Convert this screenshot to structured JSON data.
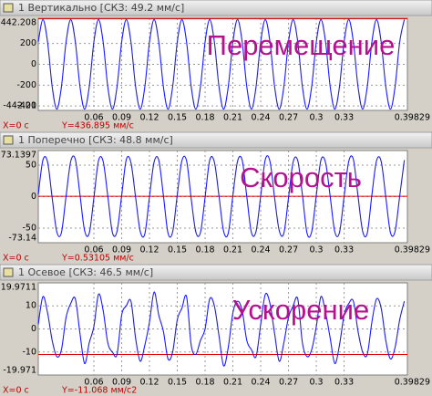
{
  "chart_data": [
    {
      "type": "line",
      "title": "1 Вертикально [СКЗ: 49.2 мм/с]",
      "annotation": "Перемещение",
      "xlim": [
        0,
        0.39829
      ],
      "ylim": [
        -442.21,
        442.208
      ],
      "xticks": [
        0.06,
        0.09,
        0.12,
        0.15,
        0.18,
        0.21,
        0.24,
        0.27,
        0.3,
        0.33,
        0.39829
      ],
      "yticks": [
        -442.21,
        -400,
        -200,
        0,
        200,
        442.208
      ],
      "cursor_x": {
        "value": 0,
        "label": "X=0 c"
      },
      "cursor_y": {
        "value": 436.895,
        "label": "Y=436.895 мм/с"
      },
      "grid": true,
      "x": [
        0,
        0.005,
        0.01,
        0.015,
        0.02,
        0.025,
        0.03,
        0.035,
        0.04,
        0.045,
        0.05,
        0.055,
        0.06,
        0.065,
        0.07,
        0.075,
        0.08,
        0.085,
        0.09,
        0.095,
        0.1,
        0.105,
        0.11,
        0.115,
        0.12,
        0.125,
        0.13,
        0.135,
        0.14,
        0.145,
        0.15,
        0.155,
        0.16,
        0.165,
        0.17,
        0.175,
        0.18,
        0.185,
        0.19,
        0.195,
        0.2,
        0.205,
        0.21,
        0.215,
        0.22,
        0.225,
        0.23,
        0.235,
        0.24,
        0.245,
        0.25,
        0.255,
        0.26,
        0.265,
        0.27,
        0.275,
        0.28,
        0.285,
        0.29,
        0.295,
        0.3,
        0.305,
        0.31,
        0.315,
        0.32,
        0.325,
        0.33,
        0.335,
        0.34,
        0.345,
        0.35,
        0.355,
        0.36,
        0.365,
        0.37,
        0.375,
        0.38,
        0.385,
        0.39,
        0.395
      ],
      "series": [
        {
          "color": "#1a1aff",
          "values": [
            215,
            430,
            215,
            -215,
            -430,
            -215,
            215,
            430,
            215,
            -215,
            -430,
            -215,
            215,
            430,
            215,
            -215,
            -430,
            -215,
            215,
            430,
            215,
            -215,
            -430,
            -215,
            215,
            430,
            215,
            -215,
            -430,
            -215,
            215,
            430,
            215,
            -215,
            -430,
            -215,
            215,
            430,
            215,
            -215,
            -430,
            -215,
            215,
            430,
            215,
            -215,
            -430,
            -215,
            215,
            430,
            215,
            -215,
            -430,
            -215,
            215,
            430,
            215,
            -215,
            -430,
            -215,
            215,
            430,
            215,
            -215,
            -430,
            -215,
            215,
            430,
            215,
            -215,
            -430,
            -215,
            215,
            430,
            215,
            -215,
            -430,
            -215,
            215,
            430
          ]
        }
      ]
    },
    {
      "type": "line",
      "title": "1 Поперечно [СКЗ: 48.8 мм/с]",
      "annotation": "Скорость",
      "xlim": [
        0,
        0.39829
      ],
      "ylim": [
        -73.14,
        73.1397
      ],
      "xticks": [
        0.06,
        0.09,
        0.12,
        0.15,
        0.18,
        0.21,
        0.24,
        0.27,
        0.3,
        0.33,
        0.39829
      ],
      "yticks": [
        -73.14,
        -50,
        0,
        50,
        73.1397
      ],
      "cursor_x": {
        "value": 0,
        "label": "X=0 c"
      },
      "cursor_y": {
        "value": 0.53105,
        "label": "Y=0.53105 мм/с"
      },
      "grid": true,
      "x": [
        0,
        0.005,
        0.01,
        0.015,
        0.02,
        0.025,
        0.03,
        0.035,
        0.04,
        0.045,
        0.05,
        0.055,
        0.06,
        0.065,
        0.07,
        0.075,
        0.08,
        0.085,
        0.09,
        0.095,
        0.1,
        0.105,
        0.11,
        0.115,
        0.12,
        0.125,
        0.13,
        0.135,
        0.14,
        0.145,
        0.15,
        0.155,
        0.16,
        0.165,
        0.17,
        0.175,
        0.18,
        0.185,
        0.19,
        0.195,
        0.2,
        0.205,
        0.21,
        0.215,
        0.22,
        0.225,
        0.23,
        0.235,
        0.24,
        0.245,
        0.25,
        0.255,
        0.26,
        0.265,
        0.27,
        0.275,
        0.28,
        0.285,
        0.29,
        0.295,
        0.3,
        0.305,
        0.31,
        0.315,
        0.32,
        0.325,
        0.33,
        0.335,
        0.34,
        0.345,
        0.35,
        0.355,
        0.36,
        0.365,
        0.37,
        0.375,
        0.38,
        0.385,
        0.39,
        0.395
      ],
      "series": [
        {
          "color": "#1a1aff",
          "values": [
            3,
            58,
            55,
            -2,
            -56,
            -57,
            1,
            56,
            59,
            3,
            -54,
            -58,
            -2,
            57,
            56,
            1,
            -57,
            -55,
            2,
            59,
            54,
            -1,
            -55,
            -59,
            0,
            55,
            58,
            2,
            -58,
            -56,
            3,
            57,
            57,
            -3,
            -56,
            -57,
            -1,
            58,
            55,
            1,
            -55,
            -58,
            2,
            56,
            58,
            0,
            -57,
            -55,
            1,
            59,
            56,
            -2,
            -54,
            -58,
            -2,
            55,
            57,
            3,
            -58,
            -56,
            2,
            58,
            54,
            0,
            -56,
            -57,
            0,
            56,
            59,
            1,
            -55,
            -58,
            3,
            57,
            56,
            -1,
            -57,
            -55,
            1,
            58
          ]
        }
      ]
    },
    {
      "type": "line",
      "title": "1 Осевое [СКЗ: 46.5 мм/с]",
      "annotation": "Ускорение",
      "xlim": [
        0,
        0.39829
      ],
      "ylim": [
        -19.971,
        19.9711
      ],
      "xticks": [
        0.06,
        0.09,
        0.12,
        0.15,
        0.18,
        0.21,
        0.24,
        0.27,
        0.3,
        0.33,
        0.39829
      ],
      "yticks": [
        -19.971,
        -10,
        0,
        10,
        19.9711
      ],
      "cursor_x": {
        "value": 0,
        "label": "X=0 c"
      },
      "cursor_y": {
        "value": -11.068,
        "label": "Y=-11.068 мм/с2"
      },
      "grid": true,
      "x": [
        0,
        0.005,
        0.01,
        0.015,
        0.02,
        0.025,
        0.03,
        0.035,
        0.04,
        0.045,
        0.05,
        0.055,
        0.06,
        0.065,
        0.07,
        0.075,
        0.08,
        0.085,
        0.09,
        0.095,
        0.1,
        0.105,
        0.11,
        0.115,
        0.12,
        0.125,
        0.13,
        0.135,
        0.14,
        0.145,
        0.15,
        0.155,
        0.16,
        0.165,
        0.17,
        0.175,
        0.18,
        0.185,
        0.19,
        0.195,
        0.2,
        0.205,
        0.21,
        0.215,
        0.22,
        0.225,
        0.23,
        0.235,
        0.24,
        0.245,
        0.25,
        0.255,
        0.26,
        0.265,
        0.27,
        0.275,
        0.28,
        0.285,
        0.29,
        0.295,
        0.3,
        0.305,
        0.31,
        0.315,
        0.32,
        0.325,
        0.33,
        0.335,
        0.34,
        0.345,
        0.35,
        0.355,
        0.36,
        0.365,
        0.37,
        0.375,
        0.38,
        0.385,
        0.39,
        0.395
      ],
      "series": [
        {
          "color": "#1a1aff",
          "values": [
            2,
            14,
            7,
            -5,
            -12,
            -9,
            5,
            11,
            13,
            -2,
            -15,
            -6,
            1,
            15,
            8,
            -6,
            -10,
            -11,
            6,
            10,
            12,
            -4,
            -14,
            -7,
            3,
            16,
            6,
            -1,
            -13,
            -10,
            4,
            9,
            14,
            -7,
            -11,
            -5,
            0,
            13,
            10,
            -3,
            -16,
            -8,
            7,
            12,
            8,
            -5,
            -9,
            -12,
            2,
            15,
            11,
            -2,
            -14,
            -6,
            5,
            10,
            13,
            -6,
            -12,
            -9,
            1,
            14,
            7,
            -4,
            -15,
            -7,
            6,
            11,
            12,
            -1,
            -10,
            -11,
            3,
            13,
            9,
            -5,
            -13,
            -8,
            4,
            12
          ]
        }
      ]
    }
  ]
}
